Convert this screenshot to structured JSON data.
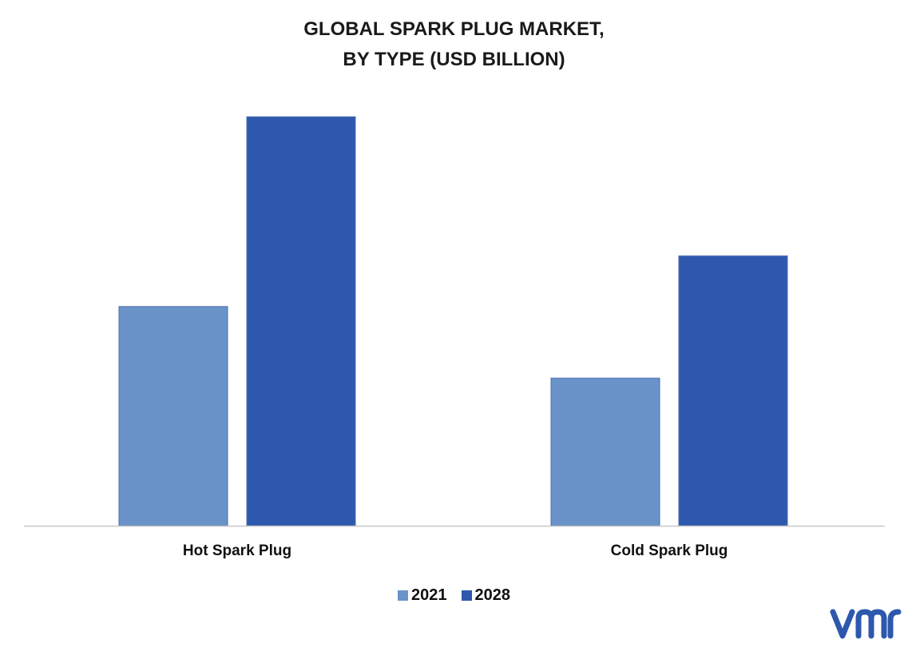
{
  "chart_data": {
    "type": "bar",
    "title": [
      "GLOBAL SPARK PLUG MARKET,",
      "BY TYPE (USD BILLION)"
    ],
    "categories": [
      "Hot Spark Plug",
      "Cold Spark Plug"
    ],
    "series": [
      {
        "name": "2021",
        "values": [
          2.6,
          1.75
        ],
        "color": "#6a93c9"
      },
      {
        "name": "2028",
        "values": [
          4.85,
          3.2
        ],
        "color": "#2e58ad"
      }
    ],
    "ylim": [
      0,
      5.1
    ],
    "grid": false,
    "legend": "bottom-center"
  },
  "branding": {
    "logo": "vmr-logo",
    "color": "#2e58ad"
  }
}
